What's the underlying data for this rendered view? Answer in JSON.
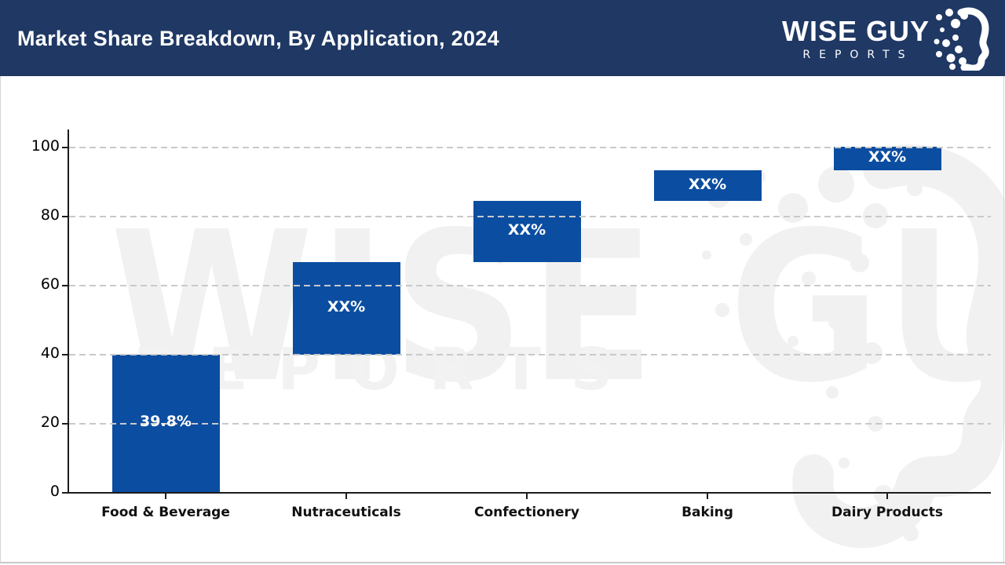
{
  "header": {
    "title": "Market Share Breakdown, By Application, 2024",
    "logo": {
      "line1": "WISE GUY",
      "line2": "REPORTS"
    }
  },
  "watermark": {
    "line1": "WISE GUY",
    "line2": "REPORTS"
  },
  "chart_data": {
    "type": "bar",
    "subtype": "floating-segment-waterfall",
    "title": "Market Share Breakdown, By Application, 2024",
    "categories": [
      "Food & Beverage",
      "Nutraceuticals",
      "Confectionery",
      "Baking",
      "Dairy Products"
    ],
    "series": [
      {
        "name": "Market share (%)",
        "segments": [
          {
            "category": "Food & Beverage",
            "start": 0,
            "end": 39.8,
            "label": "39.8%"
          },
          {
            "category": "Nutraceuticals",
            "start": 39.8,
            "end": 66.5,
            "label": "XX%"
          },
          {
            "category": "Confectionery",
            "start": 66.5,
            "end": 84.3,
            "label": "XX%"
          },
          {
            "category": "Baking",
            "start": 84.3,
            "end": 93.2,
            "label": "XX%"
          },
          {
            "category": "Dairy Products",
            "start": 93.2,
            "end": 100,
            "label": "XX%"
          }
        ]
      }
    ],
    "xlabel": "",
    "ylabel": "",
    "yticks": [
      0,
      20,
      40,
      60,
      80,
      100
    ],
    "ylim": [
      0,
      105
    ],
    "grid": "horizontal dashed lines drawn over bars",
    "legend": "none",
    "colors": {
      "bar": "#0b4da1",
      "bar_label": "#ffffff",
      "header_bg": "#1f3864",
      "grid": "#c9c9c9",
      "axis": "#1c1c1c",
      "watermark": "#f1f1f1",
      "frame_border": "#cccccc"
    }
  }
}
